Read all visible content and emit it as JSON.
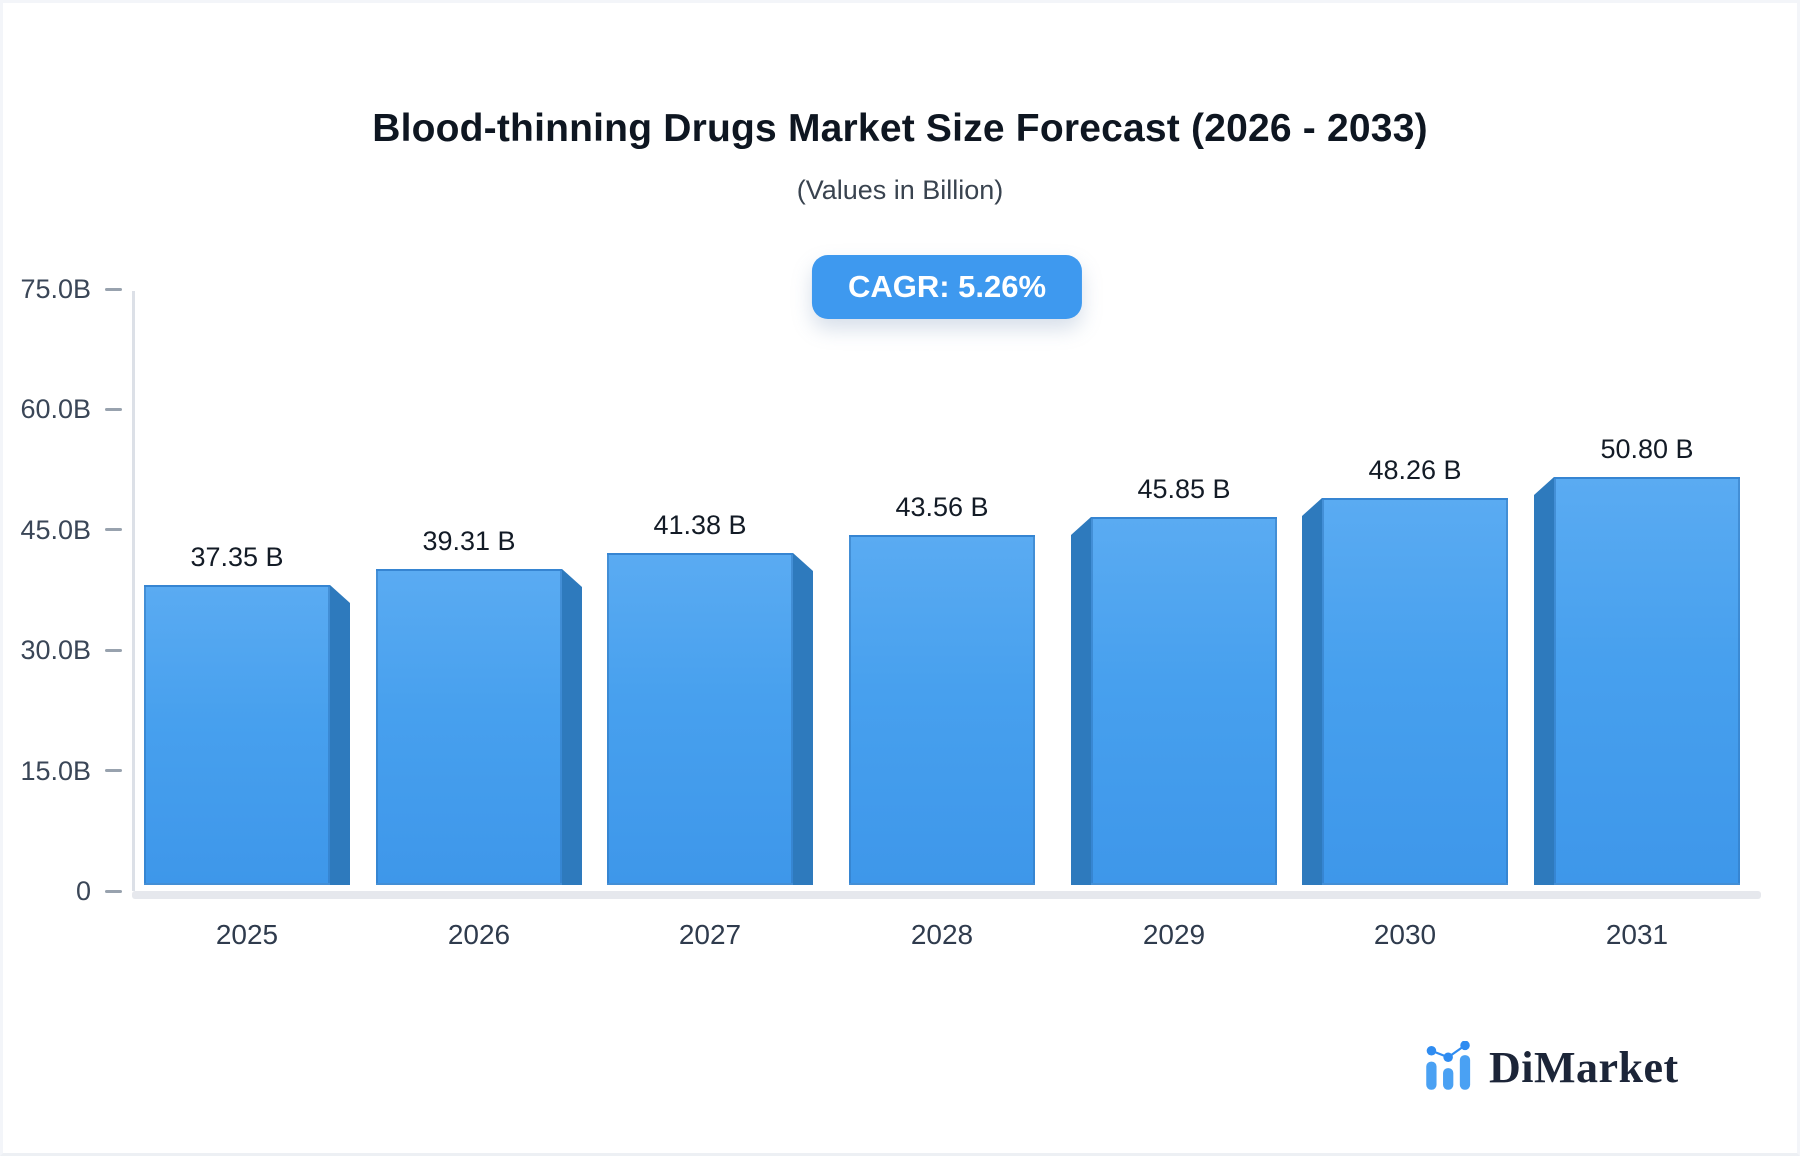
{
  "header": {
    "title": "Blood-thinning Drugs Market Size Forecast (2026 - 2033)",
    "subtitle": "(Values in Billion)"
  },
  "badge": {
    "label": "CAGR: 5.26%",
    "bg_color": "#3e99ef",
    "text_color": "#ffffff"
  },
  "chart_data": {
    "type": "bar",
    "title": "Blood-thinning Drugs Market Size Forecast (2026 - 2033)",
    "subtitle": "(Values in Billion)",
    "categories": [
      "2025",
      "2026",
      "2027",
      "2028",
      "2029",
      "2030",
      "2031"
    ],
    "values": [
      37.35,
      39.31,
      41.38,
      43.56,
      45.85,
      48.26,
      50.8
    ],
    "bar_labels": [
      "37.35 B",
      "39.31 B",
      "41.38 B",
      "43.56 B",
      "45.85 B",
      "48.26 B",
      "50.80 B"
    ],
    "unit": "B",
    "ylim": [
      0,
      75
    ],
    "ytick_values": [
      0,
      15,
      30,
      45,
      60,
      75
    ],
    "ytick_labels": [
      "0",
      "15.0B",
      "30.0B",
      "45.0B",
      "60.0B",
      "75.0B"
    ],
    "grid": false,
    "legend": false,
    "bar_face_color_top": "#5aabf2",
    "bar_face_color_bottom": "#3e97ea",
    "bar_side_color": "#2e7abd",
    "axis_color": "#dce0e7",
    "tick_color": "#98a2ae",
    "label_color": "#3a4657"
  },
  "logo": {
    "text": "DiMarket",
    "icon": "bar-chart-logo-icon",
    "icon_bar_color": "#4aa1f3",
    "icon_dot_color": "#2f8cf1",
    "text_color": "#1c2538"
  }
}
